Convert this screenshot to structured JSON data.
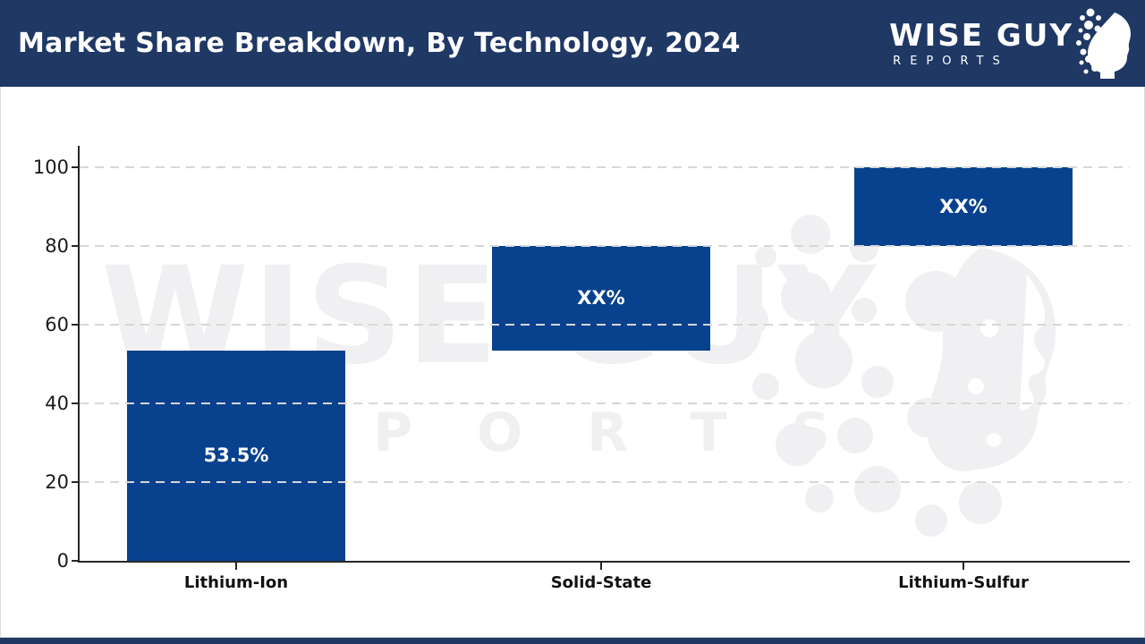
{
  "header": {
    "title": "Market Share Breakdown, By Technology, 2024",
    "logo": {
      "name": "WISE GUY",
      "tagline": "REPORTS"
    }
  },
  "watermark": {
    "name": "WISE GUY",
    "tagline": "REPORTS"
  },
  "colors": {
    "header_bg": "#1F3864",
    "bar": "#08428E",
    "grid": "#D7D7D7",
    "axis": "#262626",
    "watermark": "#F0F0F2"
  },
  "chart_data": {
    "type": "bar",
    "subtype": "waterfall",
    "title": "Market Share Breakdown, By Technology, 2024",
    "categories": [
      "Lithium-Ion",
      "Solid-State",
      "Lithium-Sulfur"
    ],
    "segments": [
      {
        "category": "Lithium-Ion",
        "start": 0,
        "end": 53.5,
        "label": "53.5%"
      },
      {
        "category": "Solid-State",
        "start": 53.5,
        "end": 80,
        "label": "XX%"
      },
      {
        "category": "Lithium-Sulfur",
        "start": 80,
        "end": 100,
        "label": "XX%"
      }
    ],
    "ylim": [
      0,
      100
    ],
    "yticks": [
      0,
      20,
      40,
      60,
      80,
      100
    ],
    "xlabel": "",
    "ylabel": "",
    "grid": "horizontal-dashed",
    "legend": "none",
    "bar_color": "#08428E"
  }
}
